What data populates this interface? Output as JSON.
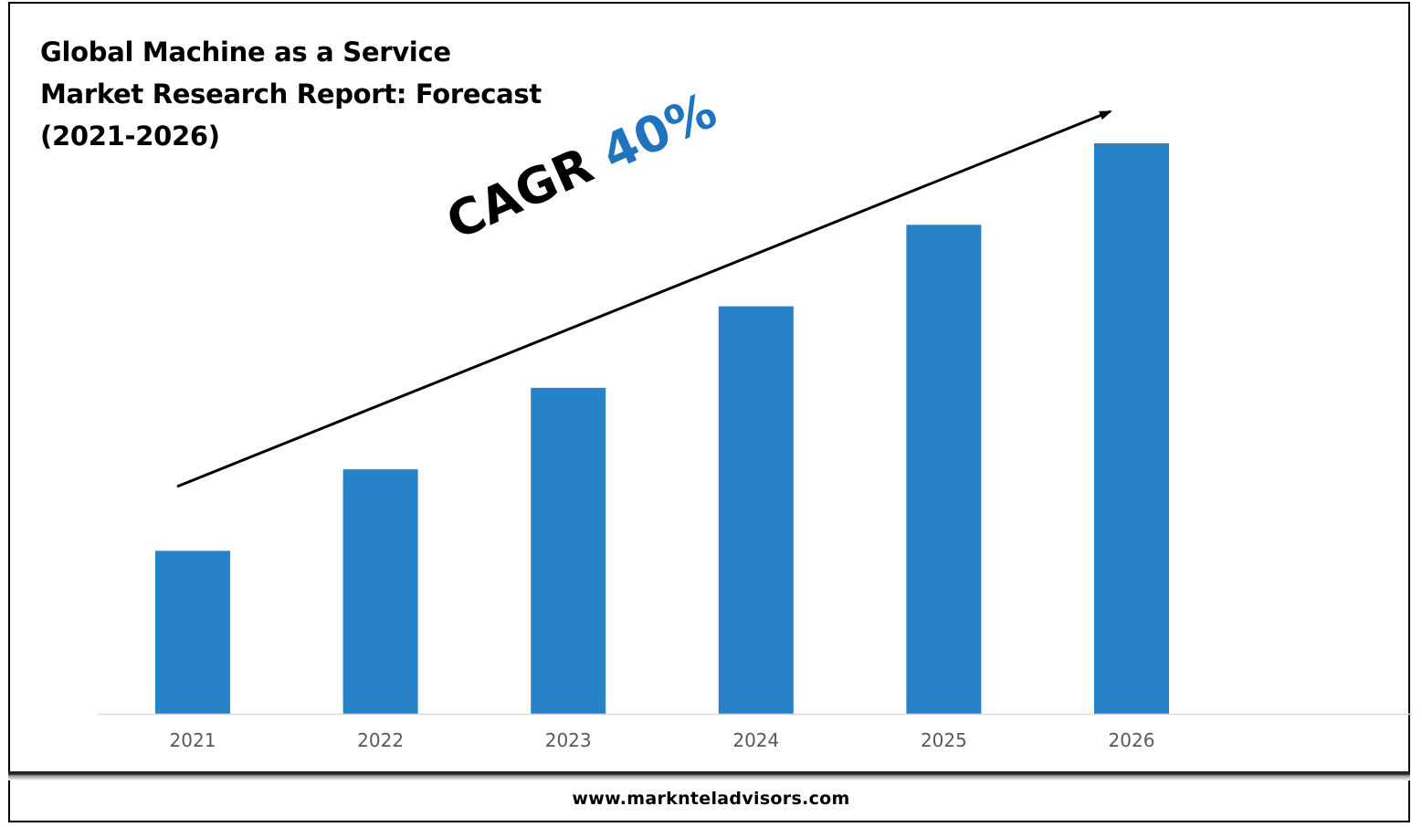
{
  "title_lines": [
    "Global Machine as a Service",
    "Market Research Report: Forecast",
    "(2021-2026)"
  ],
  "annotation": {
    "label": "CAGR",
    "value": "40%"
  },
  "footer": {
    "url": "www.marknteladvisors.com"
  },
  "colors": {
    "bar": "#2882c8",
    "cagr_value": "#1f74bd",
    "axis": "#d9d9d9",
    "tick_text": "#595959"
  },
  "chart_data": {
    "type": "bar",
    "categories": [
      "2021",
      "2022",
      "2023",
      "2024",
      "2025",
      "2026"
    ],
    "values": [
      1.0,
      1.5,
      2.0,
      2.5,
      3.0,
      3.5
    ],
    "ylim": [
      0,
      3.5
    ],
    "value_axis_shown": false,
    "grid": false,
    "legend": "none",
    "trend_arrow": "rising, above bars"
  }
}
